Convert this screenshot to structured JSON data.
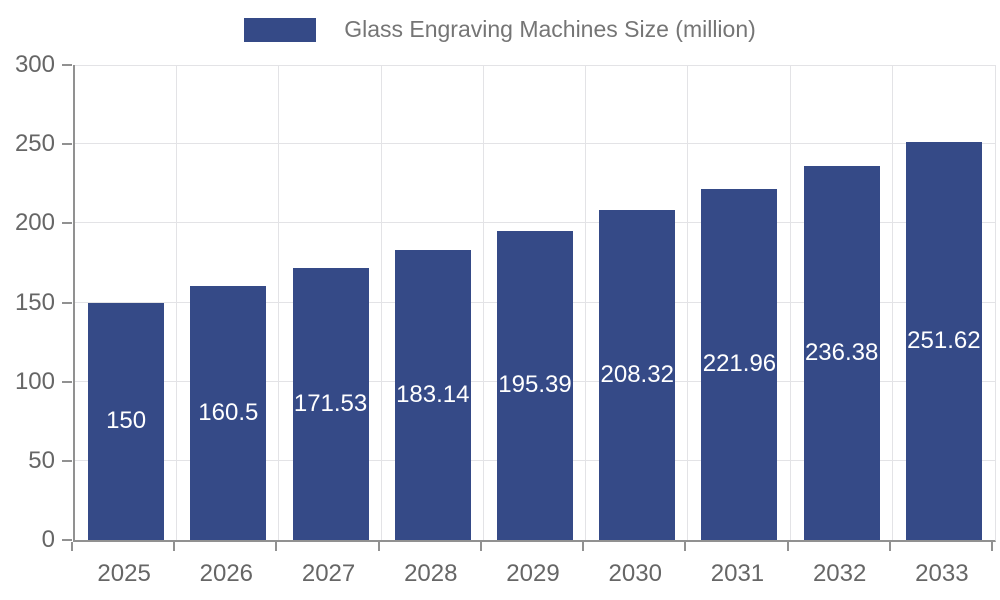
{
  "chart_data": {
    "type": "bar",
    "title": "",
    "legend": "Glass Engraving Machines Size (million)",
    "legend_position": "top",
    "categories": [
      "2025",
      "2026",
      "2027",
      "2028",
      "2029",
      "2030",
      "2031",
      "2032",
      "2033"
    ],
    "values": [
      150,
      160.5,
      171.53,
      183.14,
      195.39,
      208.32,
      221.96,
      236.38,
      251.62
    ],
    "bar_labels": [
      "150",
      "160.5",
      "171.53",
      "183.14",
      "195.39",
      "208.32",
      "221.96",
      "236.38",
      "251.62"
    ],
    "xlabel": "",
    "ylabel": "",
    "ylim": [
      0,
      300
    ],
    "yticks": [
      0,
      50,
      100,
      150,
      200,
      250,
      300
    ],
    "grid": true,
    "colors": {
      "bar": "#354a87",
      "grid": "#e3e3e6",
      "axis": "#919191",
      "tick_label": "#666666",
      "legend_text": "#757575",
      "bar_label": "#ffffff",
      "background": "#ffffff"
    }
  }
}
